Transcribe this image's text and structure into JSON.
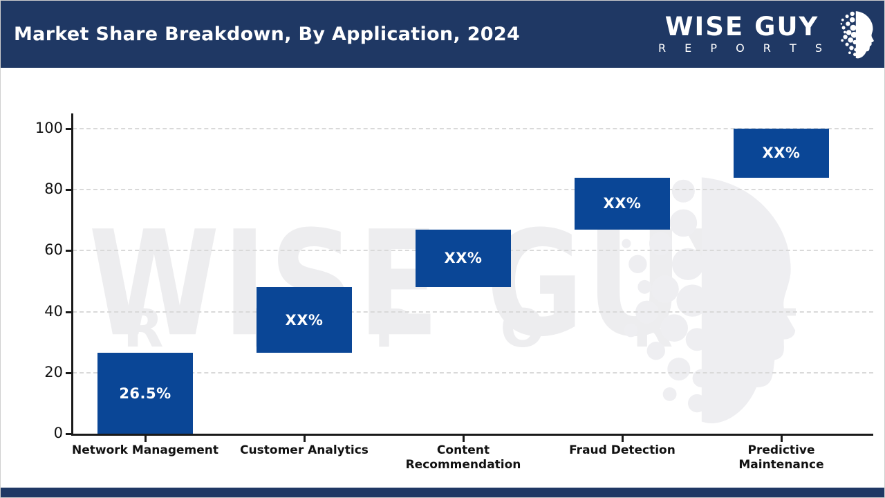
{
  "header": {
    "title": "Market Share Breakdown, By Application, 2024",
    "bg_color": "#1f3864",
    "logo_line1": "WISE GUY",
    "logo_line2": "R E P O R T S"
  },
  "watermark": {
    "line1": "WISE GUY",
    "line2": "R E P O R T S"
  },
  "chart_data": {
    "type": "bar",
    "subtype": "floating-waterfall",
    "title": "Market Share Breakdown, By Application, 2024",
    "categories": [
      "Network Management",
      "Customer Analytics",
      "Content Recommendation",
      "Fraud Detection",
      "Predictive Maintenance"
    ],
    "category_lines": [
      [
        "Network Management"
      ],
      [
        "Customer Analytics"
      ],
      [
        "Content",
        "Recommendation"
      ],
      [
        "Fraud Detection"
      ],
      [
        "Predictive",
        "Maintenance"
      ]
    ],
    "segments": [
      {
        "category": "Network Management",
        "start": 0,
        "end": 26.5,
        "label": "26.5%"
      },
      {
        "category": "Customer Analytics",
        "start": 26.5,
        "end": 48,
        "label": "XX%"
      },
      {
        "category": "Content Recommendation",
        "start": 48,
        "end": 67,
        "label": "XX%"
      },
      {
        "category": "Fraud Detection",
        "start": 67,
        "end": 84,
        "label": "XX%"
      },
      {
        "category": "Predictive Maintenance",
        "start": 84,
        "end": 100,
        "label": "XX%"
      }
    ],
    "y_ticks": [
      0,
      20,
      40,
      60,
      80,
      100
    ],
    "ylim": [
      0,
      105
    ],
    "xlabel": "",
    "ylabel": "",
    "legend": "none",
    "grid": "horizontal-dashed",
    "bar_color": "#0a4696",
    "grid_color": "#d9d9d9",
    "axis_color": "#1a1a1a",
    "value_label_color": "#ffffff"
  }
}
